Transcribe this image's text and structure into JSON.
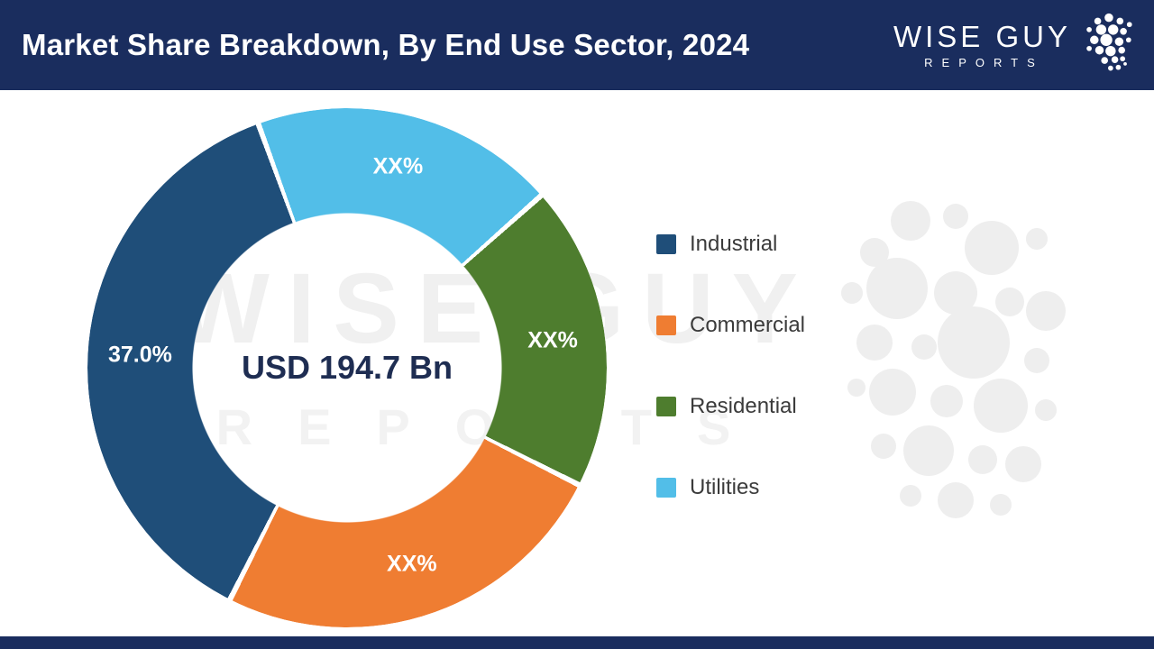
{
  "header": {
    "title": "Market Share Breakdown, By End Use Sector, 2024",
    "logo": {
      "line1": "WISE GUY",
      "line2": "REPORTS"
    }
  },
  "watermark": {
    "line1": "WISE GUY",
    "line2": "REPORTS"
  },
  "colors": {
    "header_bg": "#1a2d5e",
    "footer_bg": "#1a2d5e",
    "center_text": "#1e2d52",
    "legend_text": "#3b3b3b"
  },
  "chart_data": {
    "type": "donut",
    "title": "Market Share Breakdown, By End Use Sector, 2024",
    "center_label": "USD 194.7 Bn",
    "start_angle_deg": -20,
    "gap_deg": 1.2,
    "label_radius": 230,
    "legend_position": "right",
    "segments": [
      {
        "label": "Utilities",
        "value": 19,
        "display": "XX%",
        "color": "#52bee8"
      },
      {
        "label": "Residential",
        "value": 19,
        "display": "XX%",
        "color": "#4e7d2e"
      },
      {
        "label": "Commercial",
        "value": 25,
        "display": "XX%",
        "color": "#ef7d32"
      },
      {
        "label": "Industrial",
        "value": 37,
        "display": "37.0%",
        "color": "#1f4e79"
      }
    ],
    "legend": [
      "Industrial",
      "Commercial",
      "Residential",
      "Utilities"
    ]
  }
}
